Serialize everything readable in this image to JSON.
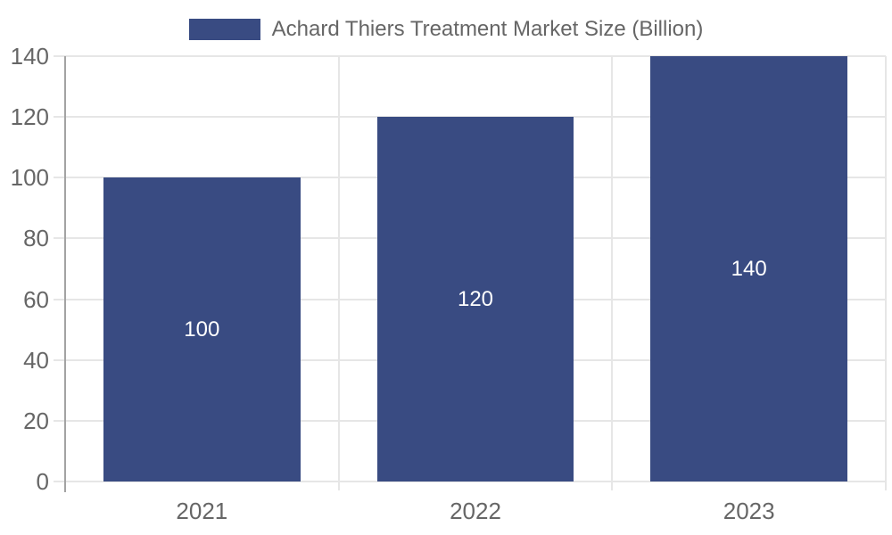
{
  "chart_data": {
    "type": "bar",
    "title": "Achard Thiers Treatment Market Size (Billion)",
    "series_name": "Achard Thiers Treatment Market Size (Billion)",
    "categories": [
      "2021",
      "2022",
      "2023"
    ],
    "values": [
      100,
      120,
      140
    ],
    "data_labels": [
      "100",
      "120",
      "140"
    ],
    "xlabel": "",
    "ylabel": "",
    "ylim": [
      0,
      140
    ],
    "ytick_step": 20,
    "ytick_labels": [
      "0",
      "20",
      "40",
      "60",
      "80",
      "100",
      "120",
      "140"
    ],
    "grid": true,
    "legend_position": "top",
    "colors": {
      "bar": "#394b82",
      "grid": "#e6e6e6",
      "axis_line": "#a3a3a3",
      "tick_text": "#666666",
      "data_label": "#ffffff",
      "background": "#ffffff"
    }
  }
}
